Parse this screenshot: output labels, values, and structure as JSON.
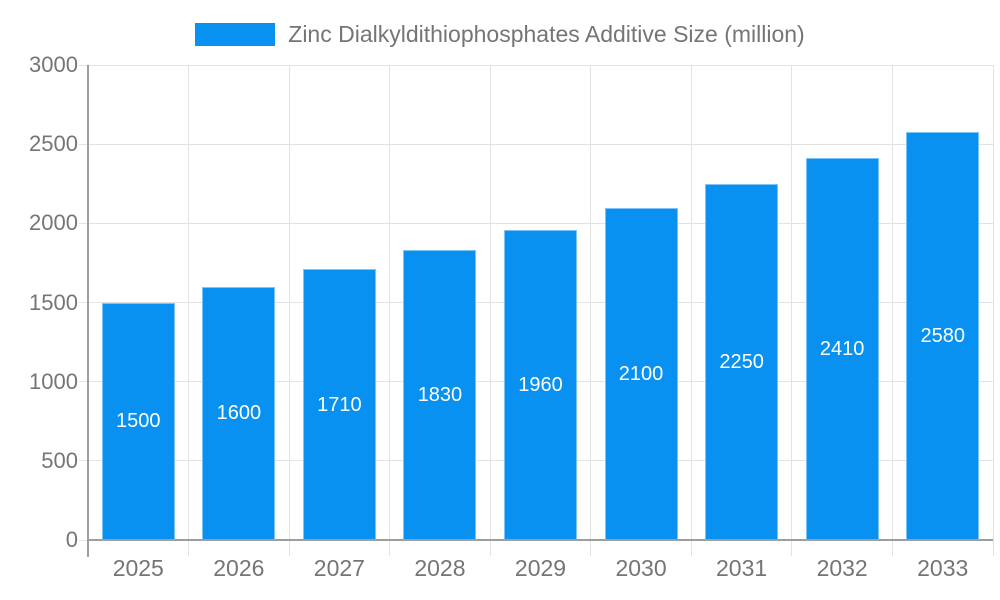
{
  "chart_data": {
    "type": "bar",
    "title": "Zinc Dialkyldithiophosphates Additive Size (million)",
    "categories": [
      "2025",
      "2026",
      "2027",
      "2028",
      "2029",
      "2030",
      "2031",
      "2032",
      "2033"
    ],
    "values": [
      1500,
      1600,
      1710,
      1830,
      1960,
      2100,
      2250,
      2410,
      2580
    ],
    "value_labels": [
      "1500",
      "1600",
      "1710",
      "1830",
      "1960",
      "2100",
      "2250",
      "2410",
      "2580"
    ],
    "xlabel": "",
    "ylabel": "",
    "ylim": [
      0,
      3000
    ],
    "yticks": [
      0,
      500,
      1000,
      1500,
      2000,
      2500,
      3000
    ],
    "ytick_labels": [
      "0",
      "500",
      "1000",
      "1500",
      "2000",
      "2500",
      "3000"
    ],
    "grid": true,
    "legend_position": "top",
    "colors": {
      "bar_fill": "#0991f2",
      "bar_border": "#7cc3f8",
      "value_label": "#ffffff",
      "axis_text": "#757575",
      "grid_line": "#e3e3e3",
      "axis_line": "#9e9e9e",
      "background": "#ffffff"
    }
  }
}
